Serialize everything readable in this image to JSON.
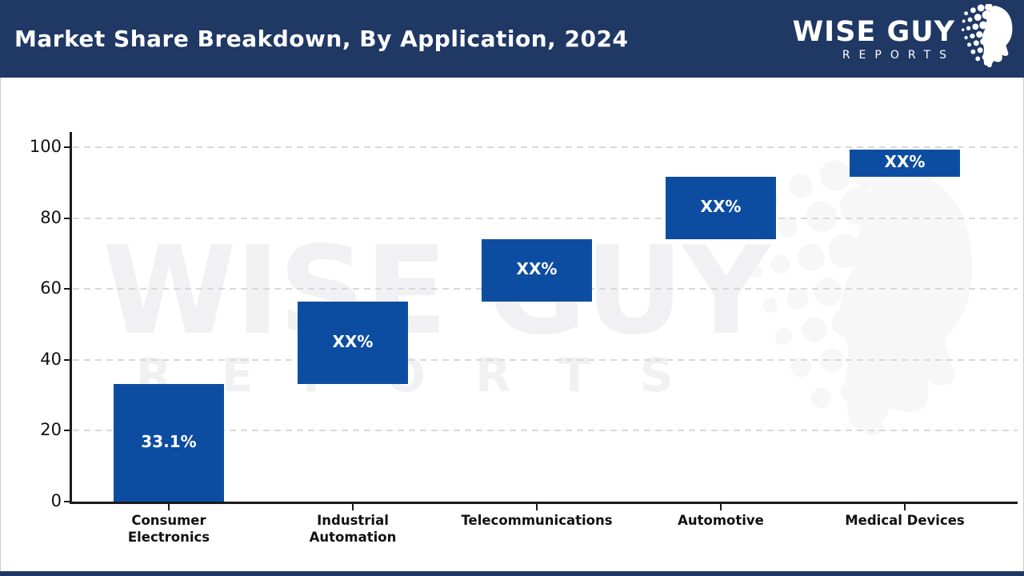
{
  "header": {
    "title": "Market Share Breakdown, By Application, 2024",
    "logo": {
      "name": "WISE GUY",
      "sub": "REPORTS",
      "icon": "dotted-head-profile-icon"
    }
  },
  "watermark": {
    "line1": "WISE GUY",
    "line2": "REPORTS"
  },
  "colors": {
    "header_background": "#1f3864",
    "bar_fill": "#0d4da1",
    "bar_label": "#ffffff",
    "gridline": "#d9d9d9",
    "axis": "#1a1a1a",
    "watermark": "#f1f1f3"
  },
  "chart_data": {
    "type": "bar",
    "subtype": "waterfall-stacked-market-share",
    "title": "Market Share Breakdown, By Application, 2024",
    "xlabel": "",
    "ylabel": "",
    "ylim": [
      0,
      100
    ],
    "yticks": [
      0,
      20,
      40,
      60,
      80,
      100
    ],
    "grid": "horizontal-dashed",
    "legend": "none",
    "categories": [
      "Consumer Electronics",
      "Industrial Automation",
      "Telecommunications",
      "Automotive",
      "Medical Devices"
    ],
    "category_label_lines": [
      [
        "Consumer",
        "Electronics"
      ],
      [
        "Industrial",
        "Automation"
      ],
      [
        "Telecommunications"
      ],
      [
        "Automotive"
      ],
      [
        "Medical Devices"
      ]
    ],
    "segments": [
      {
        "category": "Consumer Electronics",
        "start": 0,
        "end": 33.1,
        "label": "33.1%"
      },
      {
        "category": "Industrial Automation",
        "start": 33.1,
        "end": 56.5,
        "label": "XX%"
      },
      {
        "category": "Telecommunications",
        "start": 56.5,
        "end": 74.0,
        "label": "XX%"
      },
      {
        "category": "Automotive",
        "start": 74.0,
        "end": 91.6,
        "label": "XX%"
      },
      {
        "category": "Medical Devices",
        "start": 91.6,
        "end": 99.3,
        "label": "XX%"
      }
    ]
  }
}
